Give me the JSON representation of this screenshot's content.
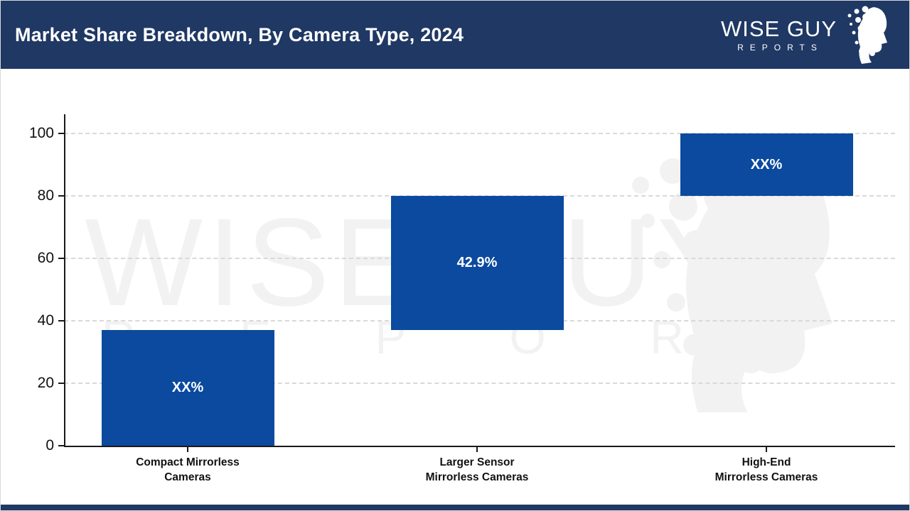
{
  "header": {
    "title": "Market Share Breakdown, By Camera Type, 2024",
    "logo": {
      "line1": "WISE GUY",
      "line2": "REPORTS"
    }
  },
  "watermark": {
    "line1": "WISE GUY",
    "line2": "R E P O R T S"
  },
  "colors": {
    "header_bg": "#1f3864",
    "header_text": "#ffffff",
    "footer_bg": "#1f3864",
    "bar": "#0b4a9e",
    "bar_label": "#ffffff",
    "gridline": "#d9d9d9",
    "axis": "#1a1a1a",
    "watermark": "#f2f2f2"
  },
  "chart_data": {
    "type": "bar",
    "subtype": "waterfall-stacked-percent",
    "title": "Market Share Breakdown, By Camera Type, 2024",
    "categories": [
      [
        "Compact Mirrorless",
        "Cameras"
      ],
      [
        "Larger Sensor",
        "Mirrorless Cameras"
      ],
      [
        "High-End",
        "Mirrorless Cameras"
      ]
    ],
    "segments": [
      {
        "base": 0,
        "top": 37.1,
        "value": 37.1,
        "label": "XX%"
      },
      {
        "base": 37.1,
        "top": 80,
        "value": 42.9,
        "label": "42.9%"
      },
      {
        "base": 80,
        "top": 100,
        "value": 20,
        "label": "XX%"
      }
    ],
    "y_ticks": [
      0,
      20,
      40,
      60,
      80,
      100
    ],
    "ylim": [
      0,
      100
    ],
    "xlabel": "",
    "ylabel": "",
    "grid": "dashed-horizontal",
    "legend": false
  }
}
